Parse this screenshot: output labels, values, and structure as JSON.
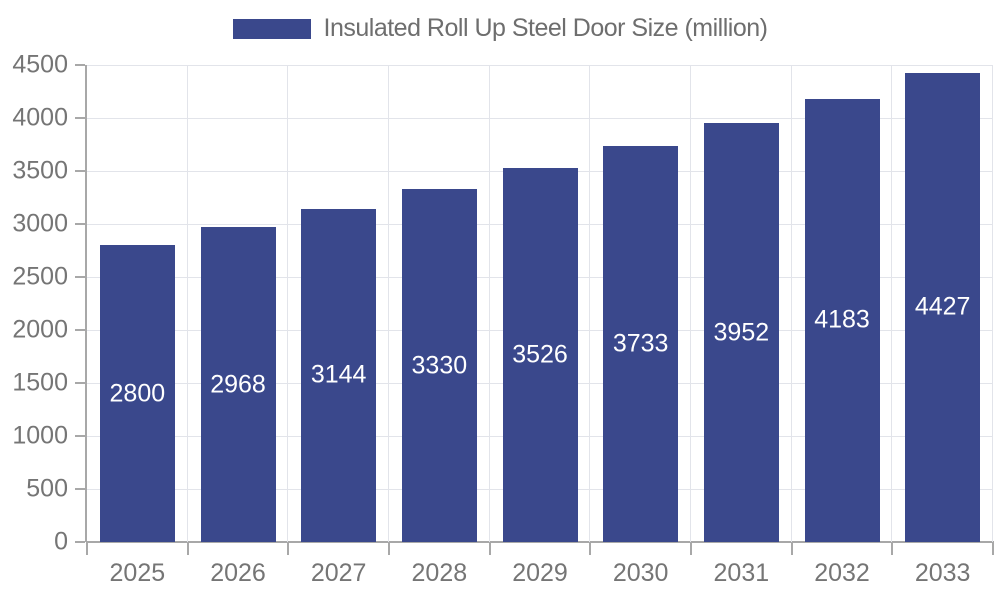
{
  "chart_data": {
    "type": "bar",
    "title": "",
    "legend_entries": [
      "Insulated Roll Up Steel Door Size (million)"
    ],
    "categories": [
      "2025",
      "2026",
      "2027",
      "2028",
      "2029",
      "2030",
      "2031",
      "2032",
      "2033"
    ],
    "series": [
      {
        "name": "Insulated Roll Up Steel Door Size (million)",
        "values": [
          2800,
          2968,
          3144,
          3330,
          3526,
          3733,
          3952,
          4183,
          4427
        ]
      }
    ],
    "xlabel": "",
    "ylabel": "",
    "ylim": [
      0,
      4500
    ],
    "ytick_step": 500,
    "grid": true,
    "legend_position": "top",
    "value_labels": "inside-center",
    "colors": {
      "bar": "#3A488C",
      "value_label": "#FFFFFF",
      "axis_label": "#757575",
      "legend_label": "#6E6E6E",
      "grid_line": "#E2E4EA",
      "axis_line": "#A8A8A8",
      "background": "#FFFFFF"
    }
  }
}
